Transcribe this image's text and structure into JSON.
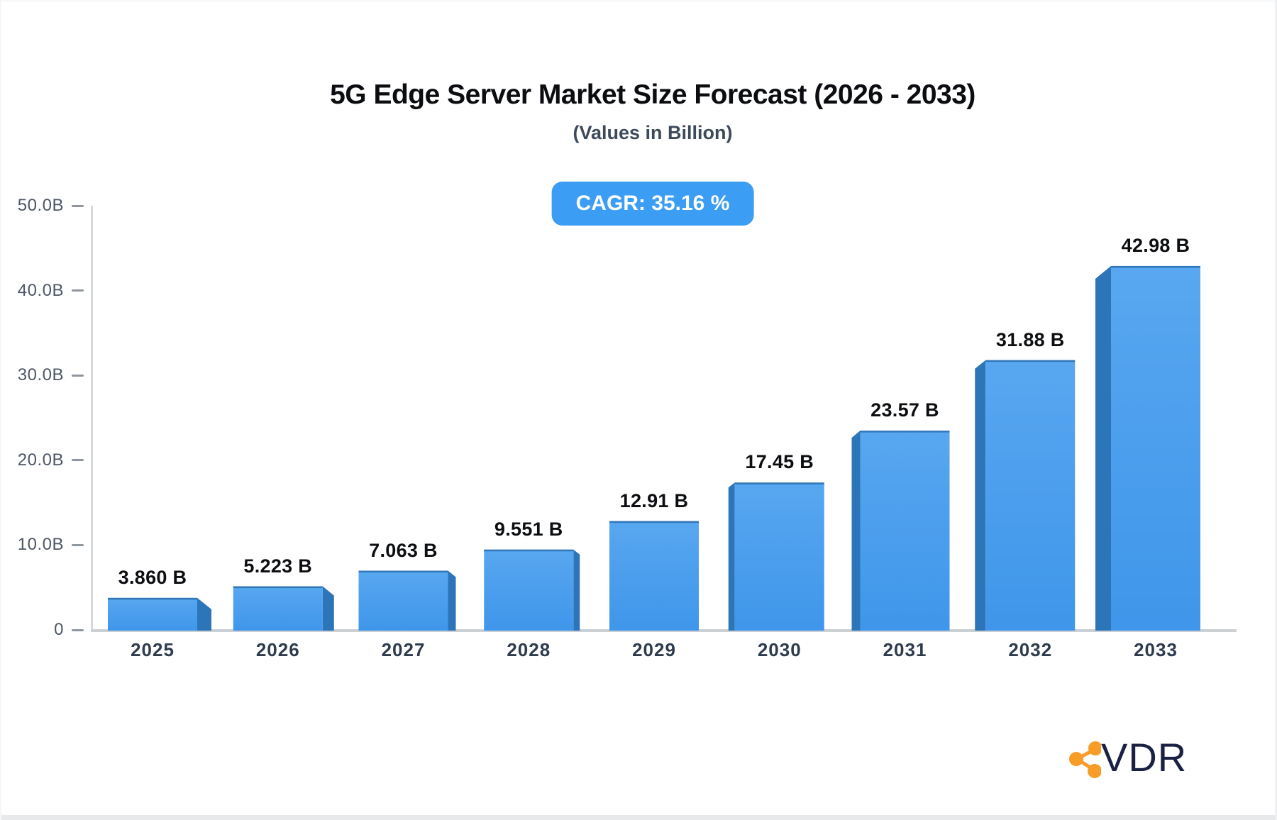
{
  "header": {
    "title": "5G Edge Server Market Size Forecast (2026 - 2033)",
    "subtitle": "(Values in Billion)",
    "badge": "CAGR: 35.16 %"
  },
  "chart_data": {
    "type": "bar",
    "style": "3d-perspective-bars",
    "title": "5G Edge Server Market Size Forecast (2026 - 2033)",
    "subtitle": "(Values in Billion)",
    "annotation_badge": "CAGR: 35.16 %",
    "cagr_percent": 35.16,
    "categories": [
      "2025",
      "2026",
      "2027",
      "2028",
      "2029",
      "2030",
      "2031",
      "2032",
      "2033"
    ],
    "values": [
      3.86,
      5.223,
      7.063,
      9.551,
      12.91,
      17.45,
      23.57,
      31.88,
      42.98
    ],
    "bar_labels": [
      "3.860 B",
      "5.223 B",
      "7.063 B",
      "9.551 B",
      "12.91 B",
      "17.45 B",
      "23.57 B",
      "31.88 B",
      "42.98 B"
    ],
    "unit": "Billion",
    "xlabel": "",
    "ylabel": "",
    "ylim": [
      0,
      50
    ],
    "y_ticks": [
      {
        "value": 50,
        "label": "50.0B"
      },
      {
        "value": 40,
        "label": "40.0B"
      },
      {
        "value": 30,
        "label": "30.0B"
      },
      {
        "value": 20,
        "label": "20.0B"
      },
      {
        "value": 10,
        "label": "10.0B"
      },
      {
        "value": 0,
        "label": "0"
      }
    ],
    "grid": false,
    "legend": "none",
    "colors": {
      "bar_front_top": "#58a7f0",
      "bar_front_bottom": "#3f96ea",
      "bar_side": "#2d75b9",
      "bar_top_edge": "#2a6fae",
      "axis_baseline": "#cbd0d4",
      "axis_vertical": "#d6d9dc",
      "badge_bg": "#3b9df3",
      "badge_text": "#ffffff"
    }
  },
  "footer": {
    "logo_text": "VDR",
    "logo_icon": "share-nodes-icon",
    "logo_icon_color": "#f79c28",
    "logo_text_color": "#1b2142"
  }
}
